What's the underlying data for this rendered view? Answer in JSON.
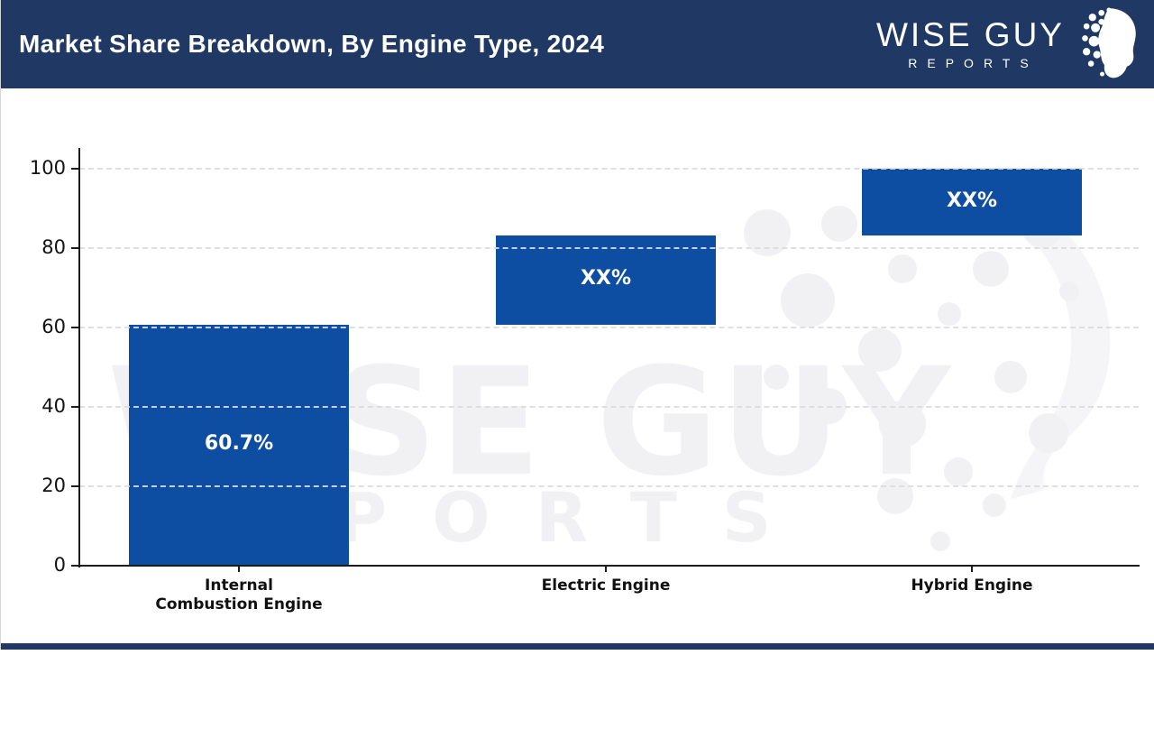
{
  "header": {
    "title": "Market Share Breakdown, By Engine Type, 2024",
    "logo": {
      "line1": "WISE GUY",
      "line2": "REPORTS"
    }
  },
  "watermark": {
    "line1": "WISE GUY",
    "line2": "REPORTS"
  },
  "chart_data": {
    "type": "bar",
    "variant": "waterfall",
    "title": "Market Share Breakdown, By Engine Type, 2024",
    "categories": [
      "Internal Combustion Engine",
      "Electric Engine",
      "Hybrid Engine"
    ],
    "segments": [
      {
        "category": "Internal Combustion Engine",
        "category_lines": [
          "Internal",
          "Combustion Engine"
        ],
        "start": 0,
        "end": 60.7,
        "value_label": "60.7%"
      },
      {
        "category": "Electric Engine",
        "category_lines": [
          "Electric Engine"
        ],
        "start": 60.7,
        "end": 83.2,
        "value_label": "XX%"
      },
      {
        "category": "Hybrid Engine",
        "category_lines": [
          "Hybrid Engine"
        ],
        "start": 83.2,
        "end": 100,
        "value_label": "XX%"
      }
    ],
    "xlabel": "",
    "ylabel": "",
    "ylim": [
      0,
      100
    ],
    "yticks": [
      0,
      20,
      40,
      60,
      80,
      100
    ],
    "grid": "horizontal-dashed",
    "legend": "none"
  },
  "colors": {
    "header_bg": "#1f3864",
    "bar": "#0d4da2",
    "bar_label": "#ffffff",
    "gridline": "#dcdcdc",
    "axis": "#1c1c1c",
    "watermark": "#f1f1f3",
    "footer_bg": "#1f3864"
  }
}
